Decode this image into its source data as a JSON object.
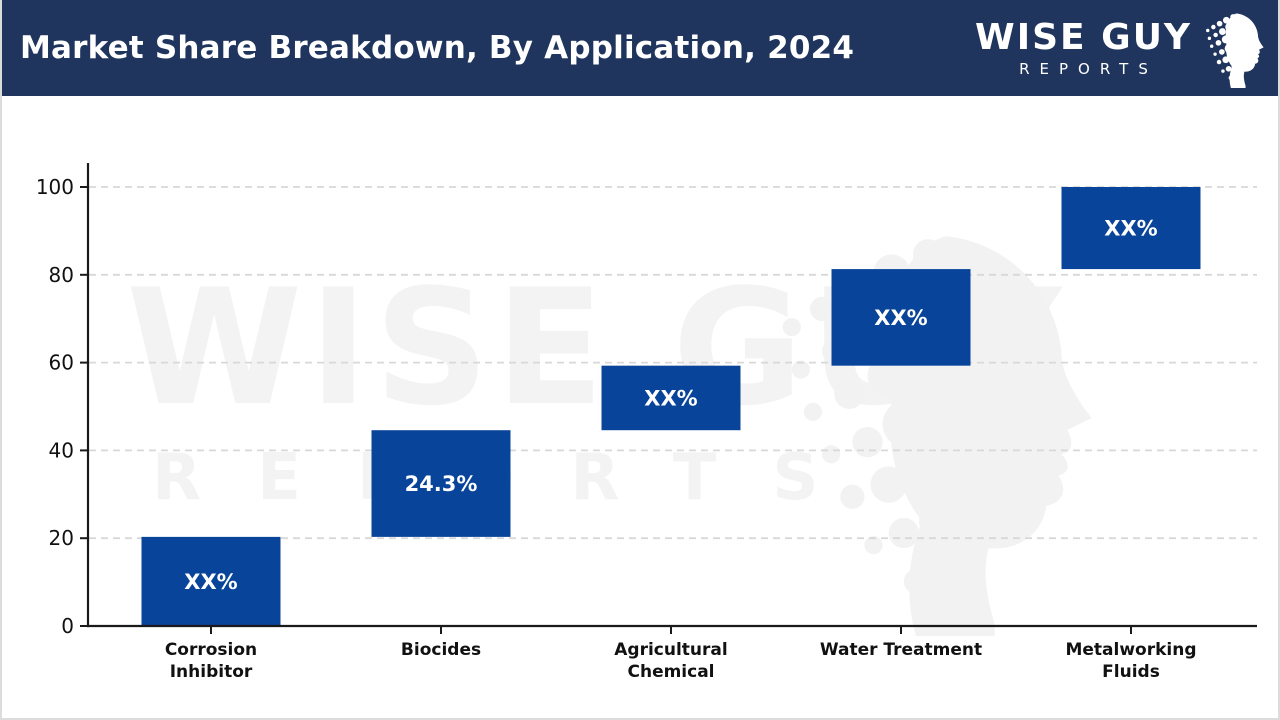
{
  "header": {
    "title": "Market Share Breakdown, By Application, 2024",
    "logo": {
      "primary": "WISE GUY",
      "secondary": "REPORTS"
    }
  },
  "watermark": {
    "primary": "WISE GUY",
    "secondary": "REPORTS"
  },
  "colors": {
    "header_bg": "#20355e",
    "bar_fill": "#084499",
    "bar_label": "#ffffff",
    "grid_line": "#d8d8d8",
    "axis_line": "#1a1a1a",
    "tick_label": "#111111",
    "watermark": "#f2f2f2"
  },
  "chart_data": {
    "type": "bar",
    "subtype": "waterfall",
    "title": "Market Share Breakdown, By Application, 2024",
    "categories": [
      "Corrosion Inhibitor",
      "Biocides",
      "Agricultural Chemical",
      "Water Treatment",
      "Metalworking Fluids"
    ],
    "category_lines": [
      [
        "Corrosion",
        "Inhibitor"
      ],
      [
        "Biocides"
      ],
      [
        "Agricultural",
        "Chemical"
      ],
      [
        "Water Treatment"
      ],
      [
        "Metalworking",
        "Fluids"
      ]
    ],
    "segments": [
      {
        "category": "Corrosion Inhibitor",
        "start": 0,
        "end": 20.3,
        "label": "XX%"
      },
      {
        "category": "Biocides",
        "start": 20.3,
        "end": 44.6,
        "label": "24.3%"
      },
      {
        "category": "Agricultural Chemical",
        "start": 44.6,
        "end": 59.3,
        "label": "XX%"
      },
      {
        "category": "Water Treatment",
        "start": 59.3,
        "end": 81.3,
        "label": "XX%"
      },
      {
        "category": "Metalworking Fluids",
        "start": 81.3,
        "end": 100,
        "label": "XX%"
      }
    ],
    "ylim": [
      0,
      100
    ],
    "yticks": [
      0,
      20,
      40,
      60,
      80,
      100
    ],
    "grid": "dashed-horizontal",
    "legend": "none"
  }
}
